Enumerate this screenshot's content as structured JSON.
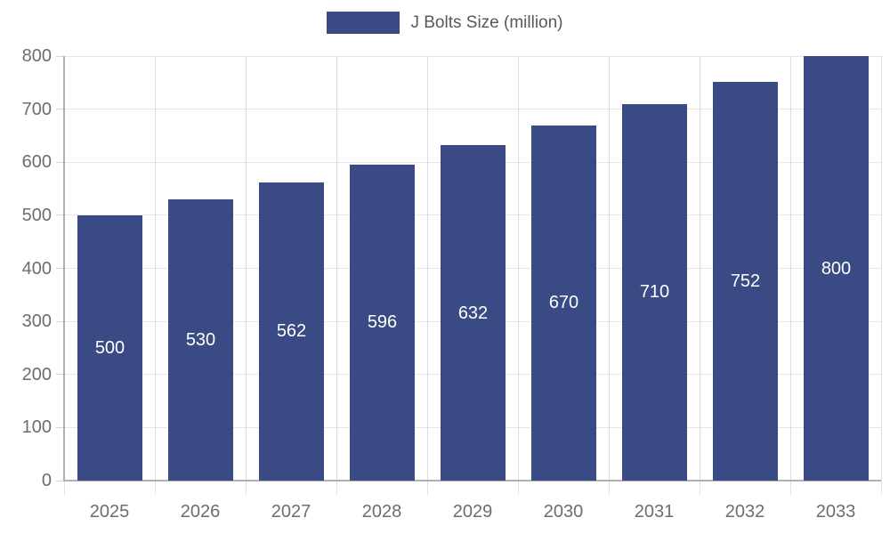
{
  "legend": {
    "label": "J Bolts Size (million)"
  },
  "colors": {
    "bar": "#3a4a84",
    "bar_label": "#ffffff",
    "axis_line": "#b0b0b3",
    "grid_horizontal": "#e5e5e8",
    "grid_vertical": "#dcdce0",
    "x_tick": "#e3e3e3",
    "y_tick": "#d6d6d6",
    "axis_text": "#6d6d70",
    "legend_text": "#58585a"
  },
  "chart_data": {
    "type": "bar",
    "title": "",
    "categories": [
      "2025",
      "2026",
      "2027",
      "2028",
      "2029",
      "2030",
      "2031",
      "2032",
      "2033"
    ],
    "series": [
      {
        "name": "J Bolts Size (million)",
        "values": [
          500,
          530,
          562,
          596,
          632,
          670,
          710,
          752,
          800
        ]
      }
    ],
    "xlabel": "",
    "ylabel": "",
    "ylim": [
      0,
      800
    ],
    "ytick_step": 100,
    "grid": true,
    "legend_position": "top-center",
    "bar_label_position": "inside-center"
  }
}
